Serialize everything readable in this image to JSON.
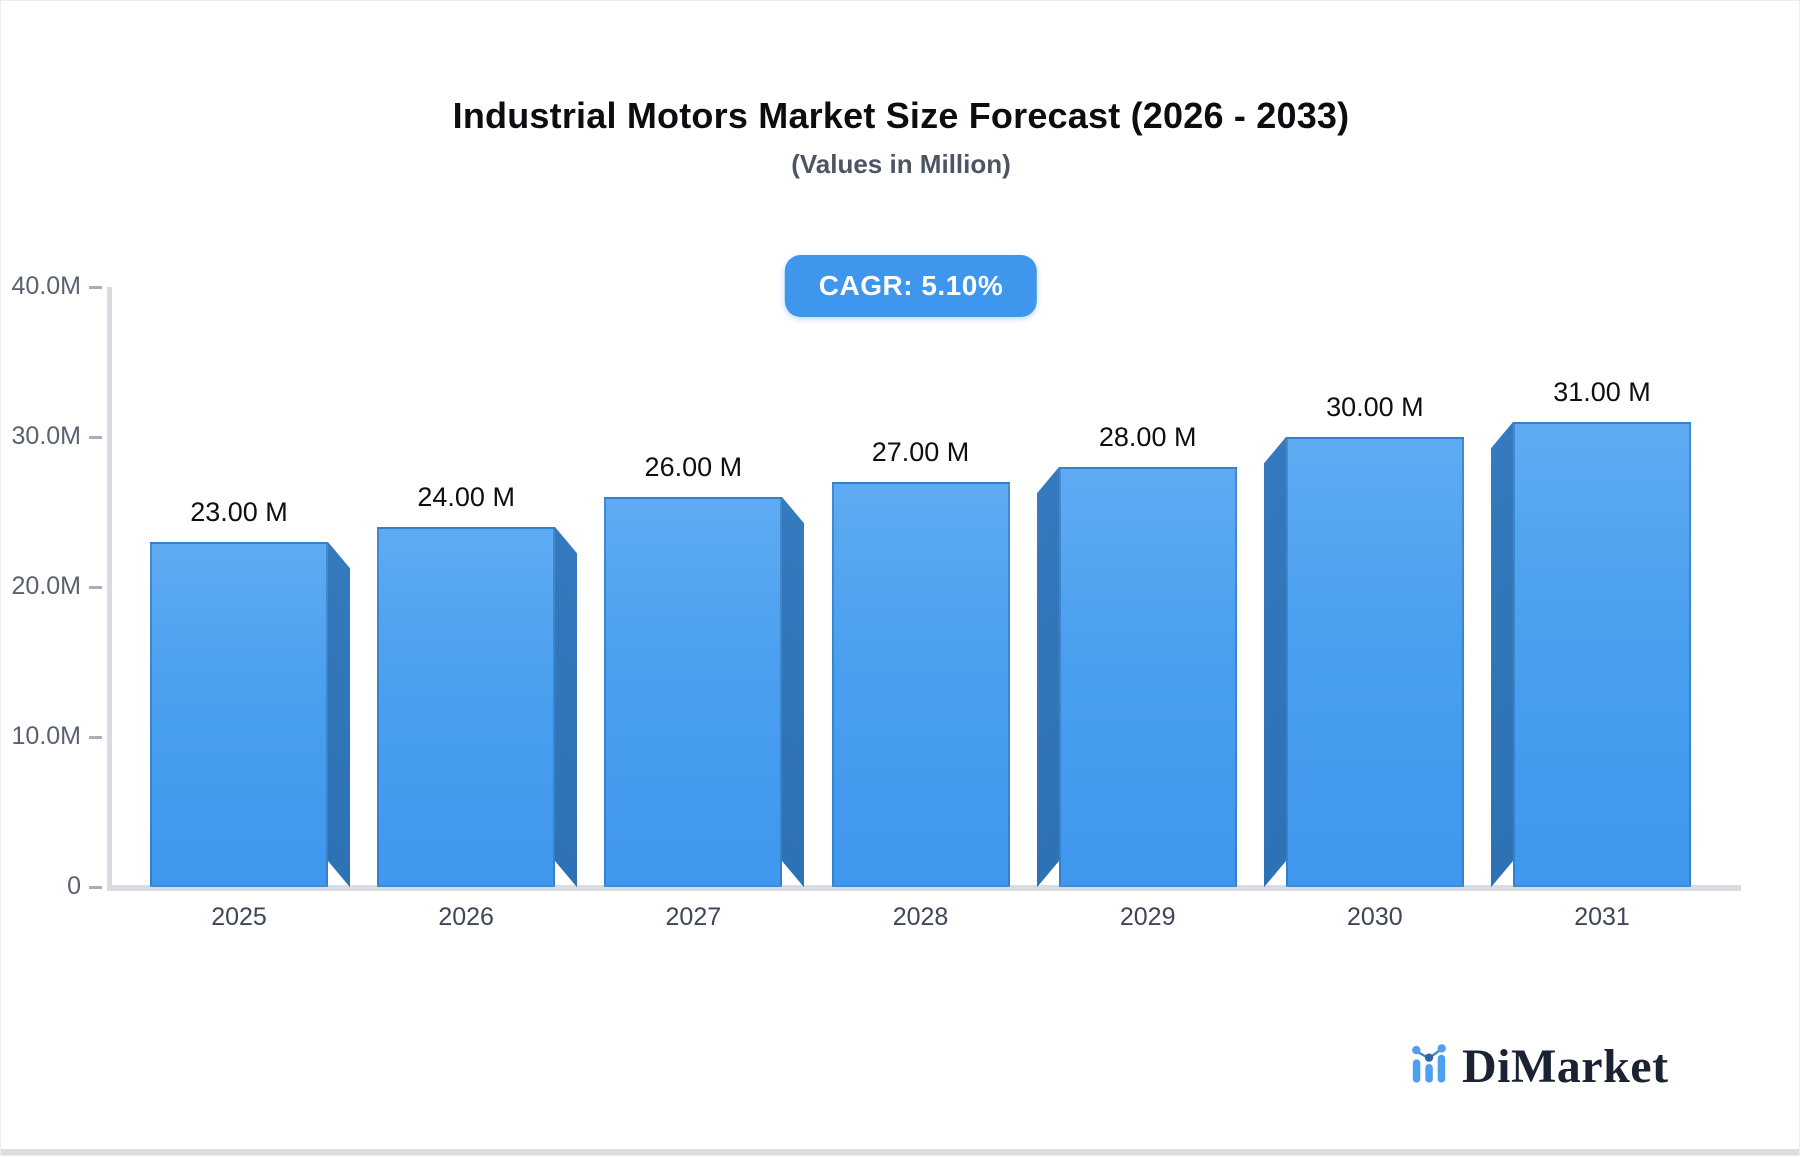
{
  "header": {
    "title": "Industrial Motors Market Size Forecast (2026 - 2033)",
    "subtitle": "(Values in Million)",
    "cagr_badge": "CAGR: 5.10%"
  },
  "chart_data": {
    "type": "bar",
    "categories": [
      "2025",
      "2026",
      "2027",
      "2028",
      "2029",
      "2030",
      "2031"
    ],
    "values": [
      23,
      24,
      26,
      27,
      28,
      30,
      31
    ],
    "bar_labels": [
      "23.00 M",
      "24.00 M",
      "26.00 M",
      "27.00 M",
      "28.00 M",
      "30.00 M",
      "31.00 M"
    ],
    "title": "Industrial Motors Market Size Forecast (2026 - 2033)",
    "subtitle": "(Values in Million)",
    "xlabel": "",
    "ylabel": "",
    "ylim": [
      0,
      40
    ],
    "y_ticks": [
      {
        "label": "0",
        "value": 0
      },
      {
        "label": "10.0M",
        "value": 10
      },
      {
        "label": "20.0M",
        "value": 20
      },
      {
        "label": "30.0M",
        "value": 30
      },
      {
        "label": "40.0M",
        "value": 40
      }
    ],
    "grid": false,
    "legend": "none",
    "annotation": "CAGR: 5.10%",
    "style": "3d-perspective-bars",
    "colors": {
      "bar_front_top": "#5EABF2",
      "bar_front_bottom": "#3F97EE",
      "bar_side": "#2D72B4",
      "badge_background": "#3E96ED",
      "badge_text": "#FFFFFF",
      "axis_line": "#D9DCE1",
      "tick_text": "#5A6270",
      "category_text": "#3E4657",
      "value_label_text": "#0E0F12"
    }
  },
  "branding": {
    "logo_text": "DiMarket",
    "logo_icon": "bar-line-chart-icon",
    "logo_color": "#1A2233",
    "logo_icon_color": "#4DA0F0"
  }
}
